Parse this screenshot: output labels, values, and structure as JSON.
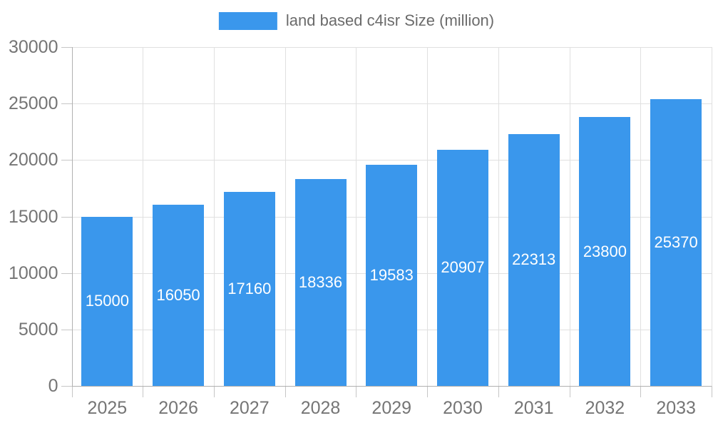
{
  "chart_data": {
    "type": "bar",
    "title": "",
    "legend_label": "land based c4isr Size (million)",
    "legend_position": "top-center",
    "categories": [
      "2025",
      "2026",
      "2027",
      "2028",
      "2029",
      "2030",
      "2031",
      "2032",
      "2033"
    ],
    "series": [
      {
        "name": "land based c4isr Size (million)",
        "values": [
          15000,
          16050,
          17160,
          18336,
          19583,
          20907,
          22313,
          23800,
          25370
        ]
      }
    ],
    "value_labels": [
      "15000",
      "16050",
      "17160",
      "18336",
      "19583",
      "20907",
      "22313",
      "23800",
      "25370"
    ],
    "value_labels_inside_bars": true,
    "xlabel": "",
    "ylabel": "",
    "ylim": [
      0,
      30000
    ],
    "y_ticks": [
      0,
      5000,
      10000,
      15000,
      20000,
      25000,
      30000
    ],
    "grid": "horizontal and vertical gridlines on",
    "colors": {
      "bar": "#3a97ec",
      "grid": "#e0e0e0",
      "axis": "#b0b0b0",
      "tick": "#c6c6c6",
      "axis_text": "#757575",
      "legend_text": "#6b6b6b",
      "value_label_text": "#ffffff",
      "background": "#ffffff"
    }
  }
}
